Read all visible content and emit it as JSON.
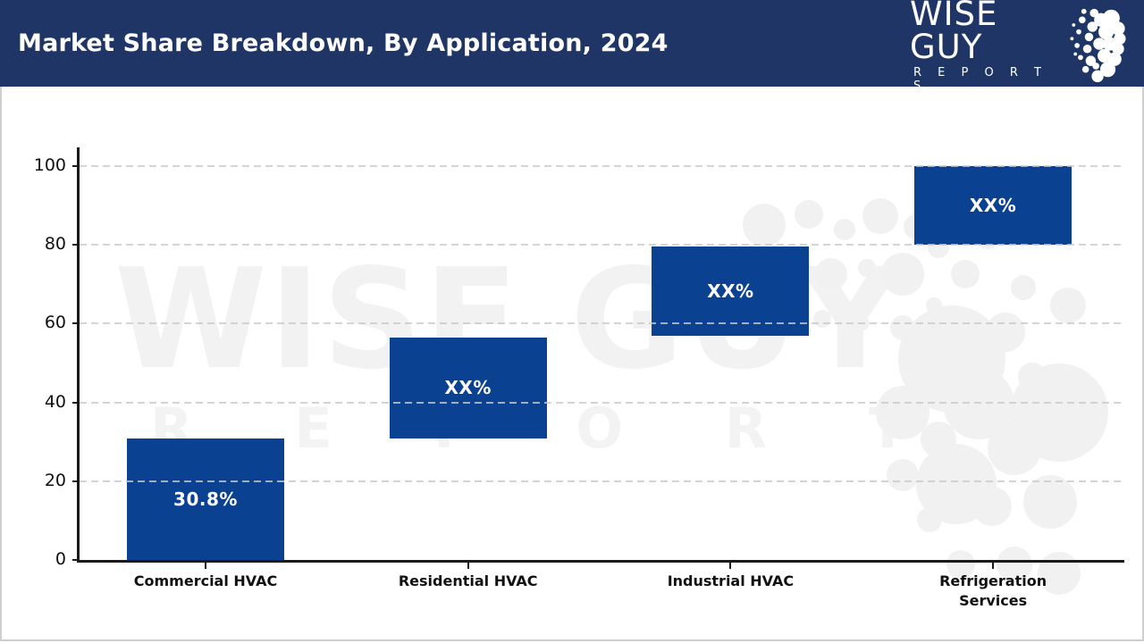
{
  "header": {
    "title": "Market Share Breakdown, By Application, 2024",
    "logo": {
      "brand_line1": "WISE GUY",
      "brand_line2": "R E P O R T S"
    }
  },
  "watermark": {
    "line1": "WISE GUY",
    "line2": "R E P O R T S"
  },
  "colors": {
    "header_bg": "#1e3566",
    "bar": "#0a4191",
    "axis": "#1a1a1a",
    "grid": "#c9c9c9",
    "frame_border": "#cfcfcf",
    "title_text": "#ffffff",
    "bar_label_text": "#ffffff",
    "watermark": "#f2f2f2"
  },
  "chart_data": {
    "type": "bar",
    "subtype": "waterfall",
    "title": "Market Share Breakdown, By Application, 2024",
    "categories": [
      "Commercial HVAC",
      "Residential HVAC",
      "Industrial HVAC",
      "Refrigeration\nServices"
    ],
    "segments": [
      {
        "category": "Commercial HVAC",
        "start": 0,
        "end": 30.8,
        "label": "30.8%"
      },
      {
        "category": "Residential HVAC",
        "start": 30.8,
        "end": 56.5,
        "label": "XX%"
      },
      {
        "category": "Industrial HVAC",
        "start": 57,
        "end": 79.5,
        "label": "XX%"
      },
      {
        "category": "Refrigeration Services",
        "start": 80,
        "end": 100,
        "label": "XX%"
      }
    ],
    "yticks": [
      0,
      20,
      40,
      60,
      80,
      100
    ],
    "ylim": [
      0,
      104.5
    ],
    "xlabel": "",
    "ylabel": "",
    "grid": "horizontal-dashed",
    "legend": "none",
    "bar_color": "#0a4191"
  }
}
